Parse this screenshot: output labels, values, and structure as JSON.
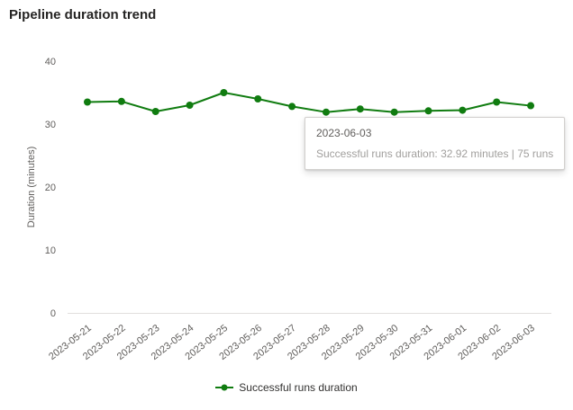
{
  "title": "Pipeline duration trend",
  "colors": {
    "series_green": "#107C10",
    "axis_text": "#605e5c",
    "axis_line": "#e1dfdd",
    "title_text": "#252423"
  },
  "chart_data": {
    "type": "line",
    "title": "Pipeline duration trend",
    "xlabel": "",
    "ylabel": "Duration (minutes)",
    "ylim": [
      0,
      40
    ],
    "yticks": [
      0,
      10,
      20,
      30,
      40
    ],
    "grid": false,
    "legend_position": "bottom",
    "categories": [
      "2023-05-21",
      "2023-05-22",
      "2023-05-23",
      "2023-05-24",
      "2023-05-25",
      "2023-05-26",
      "2023-05-27",
      "2023-05-28",
      "2023-05-29",
      "2023-05-30",
      "2023-05-31",
      "2023-06-01",
      "2023-06-02",
      "2023-06-03"
    ],
    "series": [
      {
        "name": "Successful runs duration",
        "color": "#107C10",
        "values": [
          33.5,
          33.6,
          32.0,
          33.0,
          35.0,
          34.0,
          32.8,
          31.9,
          32.4,
          31.9,
          32.1,
          32.2,
          33.5,
          32.92
        ]
      }
    ]
  },
  "tooltip": {
    "title": "2023-06-03",
    "body": "Successful runs duration: 32.92 minutes | 75 runs"
  },
  "legend": {
    "label": "Successful runs duration"
  }
}
